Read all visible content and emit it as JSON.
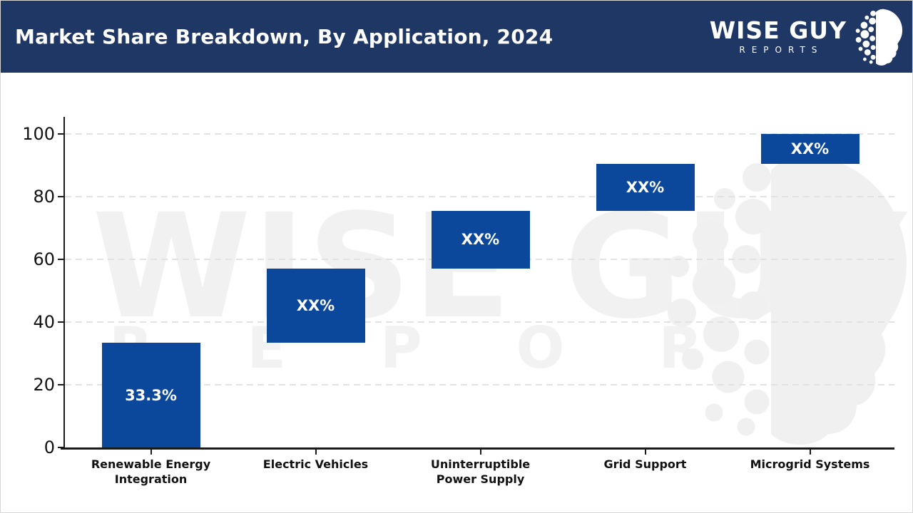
{
  "header": {
    "title": "Market Share Breakdown, By Application, 2024",
    "logo": {
      "brand": "WISE GUY",
      "sub": "REPORTS"
    }
  },
  "watermark": {
    "line1": "WISE GUY",
    "line2": "R E P O R T S"
  },
  "chart_data": {
    "type": "bar",
    "variant": "waterfall",
    "title": "Market Share Breakdown, By Application, 2024",
    "categories": [
      "Renewable Energy\nIntegration",
      "Electric Vehicles",
      "Uninterruptible\nPower Supply",
      "Grid Support",
      "Microgrid Systems"
    ],
    "segments": [
      {
        "start": 0,
        "end": 33.3,
        "label": "33.3%"
      },
      {
        "start": 33.3,
        "end": 57.0,
        "label": "XX%"
      },
      {
        "start": 57.0,
        "end": 75.5,
        "label": "XX%"
      },
      {
        "start": 75.5,
        "end": 90.5,
        "label": "XX%"
      },
      {
        "start": 90.5,
        "end": 100,
        "label": "XX%"
      }
    ],
    "values": [
      33.3,
      23.7,
      18.5,
      15.0,
      9.5
    ],
    "xlabel": "",
    "ylabel": "",
    "ylim": [
      0,
      100
    ],
    "yticks": [
      0,
      20,
      40,
      60,
      80,
      100
    ],
    "grid": "horizontal-dashed",
    "legend": "none",
    "bar_color": "#0b489c",
    "bar_label_color": "#ffffff",
    "axis_color": "#1a1a1a",
    "grid_color": "#e2e2e2",
    "header_color": "#1F3765",
    "watermark_color": "#f1f1f1"
  }
}
